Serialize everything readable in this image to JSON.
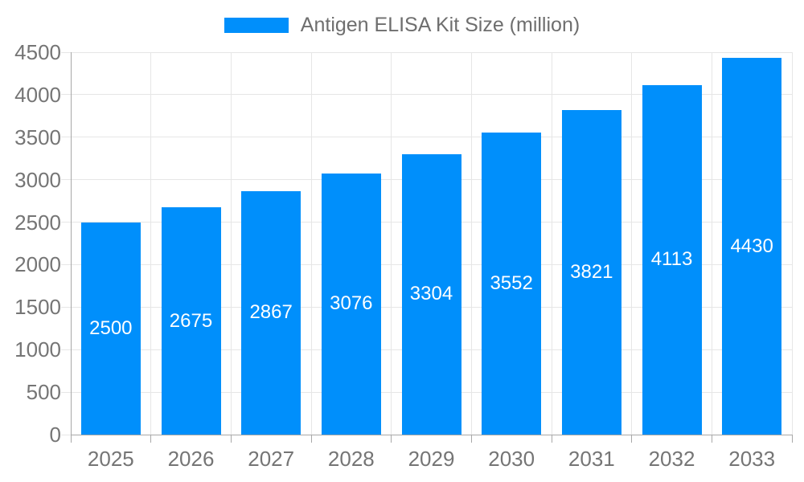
{
  "legend": {
    "label": "Antigen ELISA Kit Size (million)",
    "swatch_color": "#008FFB"
  },
  "chart_data": {
    "type": "bar",
    "title": "Antigen ELISA Kit Size (million)",
    "categories": [
      "2025",
      "2026",
      "2027",
      "2028",
      "2029",
      "2030",
      "2031",
      "2032",
      "2033"
    ],
    "values": [
      2500,
      2675,
      2867,
      3076,
      3304,
      3552,
      3821,
      4113,
      4430
    ],
    "series_name": "Antigen ELISA Kit Size (million)",
    "xlabel": "",
    "ylabel": "",
    "ylim": [
      0,
      4500
    ],
    "ytick_step": 500,
    "ytick_labels": [
      "0",
      "500",
      "1000",
      "1500",
      "2000",
      "2500",
      "3000",
      "3500",
      "4000",
      "4500"
    ],
    "grid": true,
    "legend_position": "top",
    "value_labels_shown": true,
    "colors": {
      "bar": "#008FFB",
      "value_label": "#ffffff",
      "axis_text": "#757575",
      "grid_line": "#e6e6e6",
      "axis_line": "#a8a8a8"
    }
  }
}
